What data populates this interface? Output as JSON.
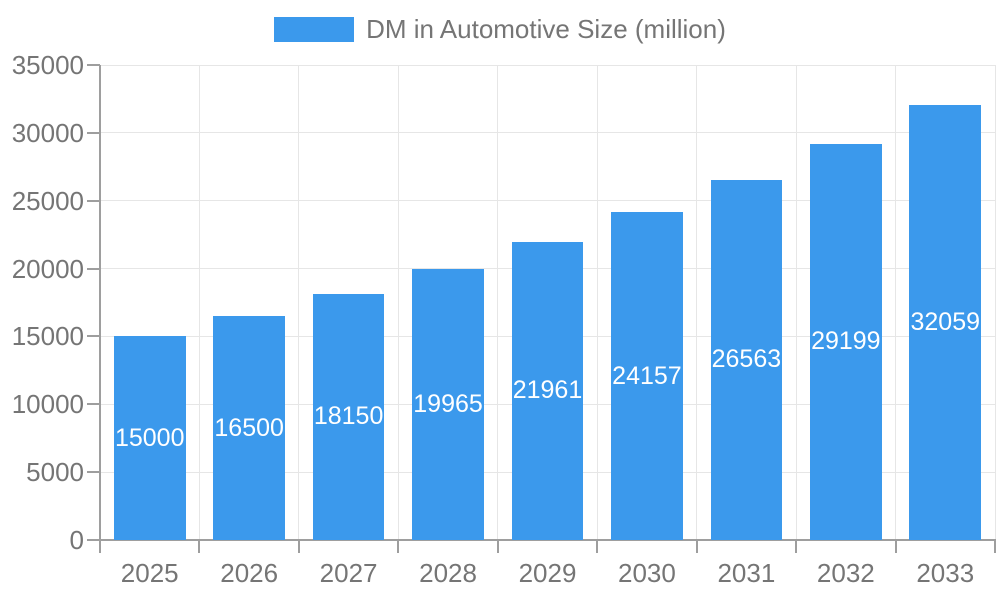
{
  "legend": {
    "label": "DM in Automotive Size (million)"
  },
  "chart_data": {
    "type": "bar",
    "title": "DM in Automotive Size (million)",
    "categories": [
      "2025",
      "2026",
      "2027",
      "2028",
      "2029",
      "2030",
      "2031",
      "2032",
      "2033"
    ],
    "values": [
      15000,
      16500,
      18150,
      19965,
      21961,
      24157,
      26563,
      29199,
      32059
    ],
    "xlabel": "",
    "ylabel": "",
    "ylim": [
      0,
      35000
    ],
    "ytick_step": 5000,
    "yticks": [
      0,
      5000,
      10000,
      15000,
      20000,
      25000,
      30000,
      35000
    ],
    "grid": true,
    "legend_position": "top",
    "bar_color": "#3B99EC",
    "bar_label_color": "#FFFFFF",
    "axis_text_color": "#757575",
    "grid_color": "#E6E6E6",
    "axis_line_color": "#9E9E9E",
    "background_color": "#FFFFFF"
  }
}
